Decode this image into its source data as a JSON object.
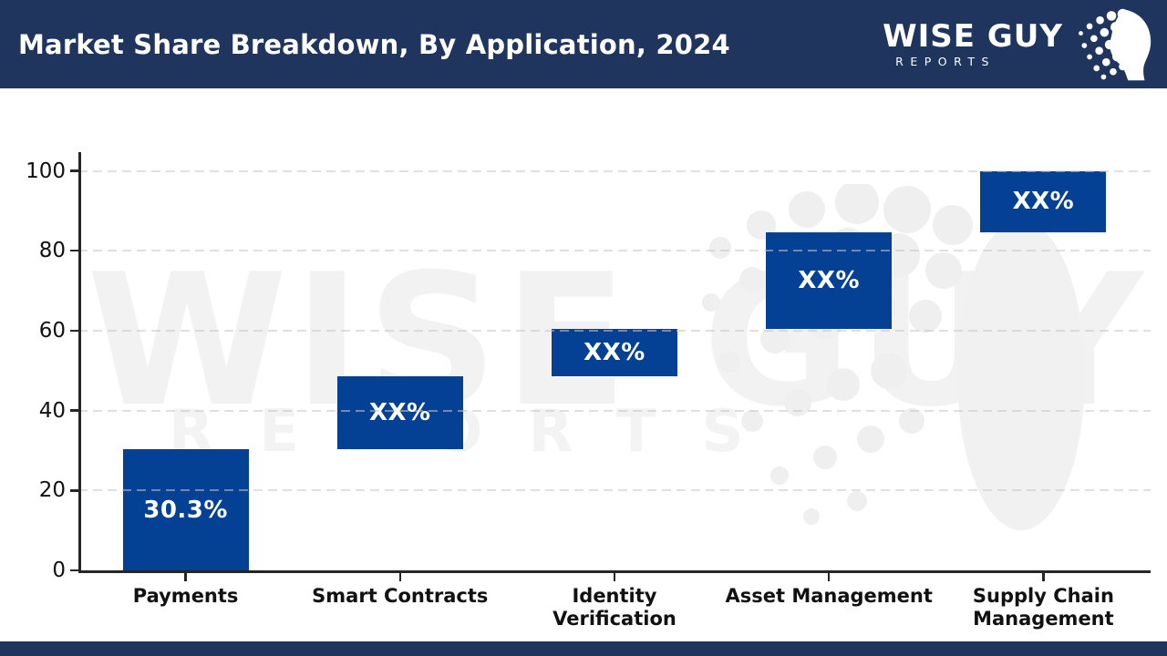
{
  "header": {
    "title": "Market Share Breakdown, By Application, 2024",
    "bg_color": "#1f355e",
    "logo": {
      "line1": "WISE GUY",
      "line2": "REPORTS",
      "icon": "head-profile-dots-icon"
    }
  },
  "watermark": {
    "line1": "WISE GUY",
    "line2": "REPORTS",
    "icon": "head-profile-dots-icon"
  },
  "chart_data": {
    "type": "bar",
    "subtype": "waterfall",
    "title": "Market Share Breakdown, By Application, 2024",
    "categories": [
      "Payments",
      "Smart Contracts",
      "Identity\nVerification",
      "Asset Management",
      "Supply Chain\nManagement"
    ],
    "segments": [
      {
        "category": "Payments",
        "start": 0,
        "end": 30.3,
        "label": "30.3%"
      },
      {
        "category": "Smart Contracts",
        "start": 30.3,
        "end": 48.5,
        "label": "XX%"
      },
      {
        "category": "Identity Verification",
        "start": 48.5,
        "end": 60.5,
        "label": "XX%"
      },
      {
        "category": "Asset Management",
        "start": 60.5,
        "end": 84.5,
        "label": "XX%"
      },
      {
        "category": "Supply Chain Management",
        "start": 84.5,
        "end": 100,
        "label": "XX%"
      }
    ],
    "yticks": [
      0,
      20,
      40,
      60,
      80,
      100
    ],
    "ylim": [
      0,
      107
    ],
    "xlabel": "",
    "ylabel": "",
    "grid": "horizontal-dashed",
    "legend": "none",
    "bar_color": "#044194",
    "bar_label_color": "#ffffff",
    "axis_color": "#262626"
  }
}
